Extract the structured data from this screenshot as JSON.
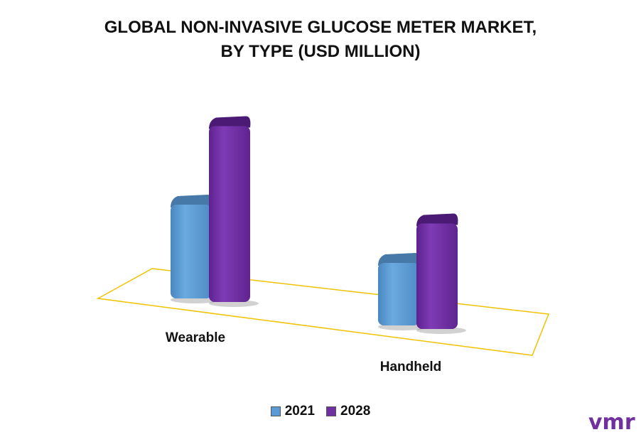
{
  "title_lines": [
    "GLOBAL NON-INVASIVE GLUCOSE METER MARKET,",
    "BY TYPE (USD MILLION)"
  ],
  "chart_data": {
    "type": "bar",
    "title": "GLOBAL NON-INVASIVE GLUCOSE METER MARKET, BY TYPE (USD MILLION)",
    "categories": [
      "Wearable",
      "Handheld"
    ],
    "series": [
      {
        "name": "2021",
        "values": [
          120,
          80
        ],
        "color": "#5b9bd5"
      },
      {
        "name": "2028",
        "values": [
          225,
          135
        ],
        "color": "#7030a0"
      }
    ],
    "ylim": [
      0,
      250
    ],
    "grid": false,
    "legend": "bottom-center"
  },
  "logo_text": "vmr",
  "colors": {
    "floor": "#f2c200",
    "series_2021": "#5b9bd5",
    "series_2028": "#7030a0"
  }
}
